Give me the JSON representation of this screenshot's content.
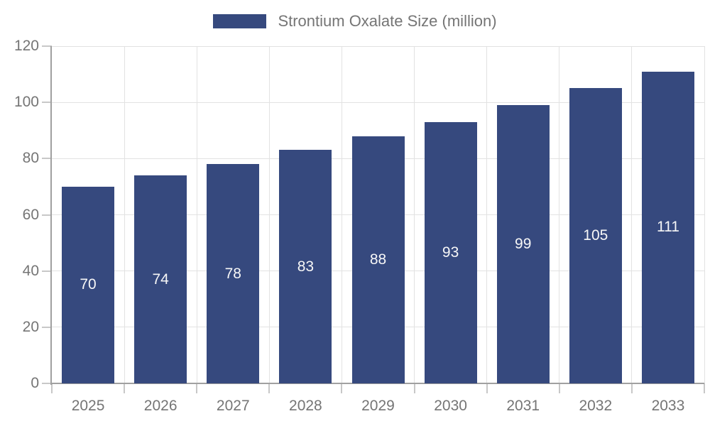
{
  "chart_data": {
    "type": "bar",
    "title": "",
    "series_name": "Strontium Oxalate Size (million)",
    "categories": [
      "2025",
      "2026",
      "2027",
      "2028",
      "2029",
      "2030",
      "2031",
      "2032",
      "2033"
    ],
    "values": [
      70,
      74,
      78,
      83,
      88,
      93,
      99,
      105,
      111
    ],
    "bar_labels": [
      "70",
      "74",
      "78",
      "83",
      "88",
      "93",
      "99",
      "105",
      "111"
    ],
    "xlabel": "",
    "ylabel": "",
    "ylim": [
      0,
      120
    ],
    "yticks": [
      0,
      20,
      40,
      60,
      80,
      100,
      120
    ],
    "grid": true,
    "legend_position": "top-center",
    "bar_label_position": "center",
    "colors": {
      "bar": "#36497e",
      "grid": "#e2e2e2",
      "axis": "#a0a0a0",
      "tick": "#c8c8c8",
      "tick_label": "#757575",
      "legend_label": "#757575",
      "bar_value_label": "#f7f7f7",
      "background": "#ffffff"
    }
  }
}
